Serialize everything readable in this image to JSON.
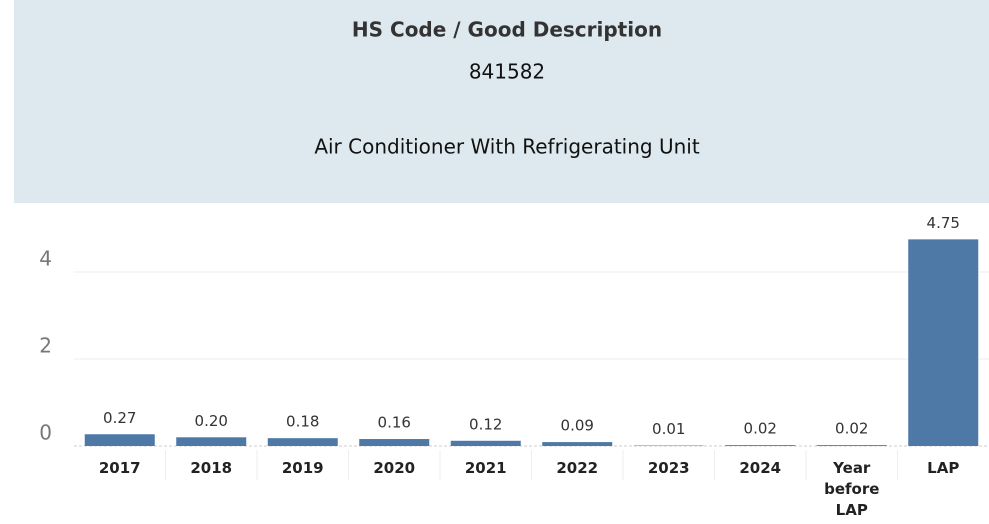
{
  "chart_data": {
    "type": "bar",
    "title": "HS Code / Good Description",
    "subtitle": "841582",
    "caption": "Air Conditioner With Refrigerating Unit",
    "categories": [
      "2017",
      "2018",
      "2019",
      "2020",
      "2021",
      "2022",
      "2023",
      "2024",
      "Year before LAP",
      "LAP"
    ],
    "values": [
      0.27,
      0.2,
      0.18,
      0.16,
      0.12,
      0.09,
      0.01,
      0.02,
      0.02,
      4.75
    ],
    "value_labels": [
      "0.27",
      "0.20",
      "0.18",
      "0.16",
      "0.12",
      "0.09",
      "0.01",
      "0.02",
      "0.02",
      "4.75"
    ],
    "color": "#4e79a7",
    "ylim": [
      0,
      5.54
    ],
    "yticks": [
      0,
      2,
      4
    ],
    "grid": true
  }
}
